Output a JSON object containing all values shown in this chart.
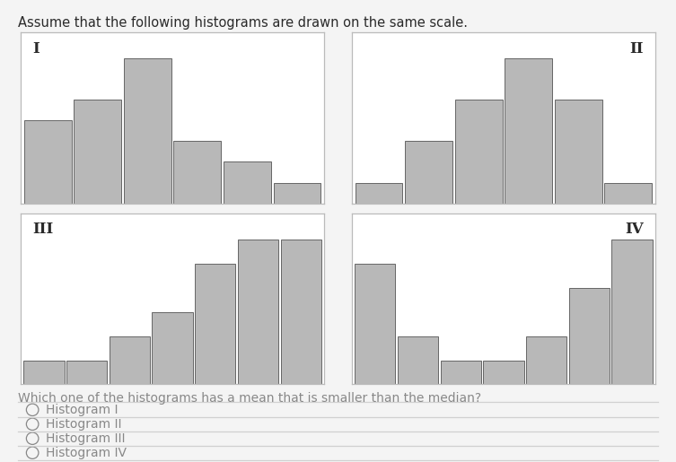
{
  "title": "Assume that the following histograms are drawn on the same scale.",
  "question": "Which one of the histograms has a mean that is smaller than the median?",
  "options": [
    "Histogram I",
    "Histogram II",
    "Histogram III",
    "Histogram IV"
  ],
  "hist_I": [
    4,
    5,
    7,
    3,
    2,
    1
  ],
  "hist_II": [
    1,
    3,
    5,
    7,
    5,
    1
  ],
  "hist_III": [
    1,
    1,
    2,
    3,
    5,
    6,
    6
  ],
  "hist_IV": [
    5,
    2,
    1,
    1,
    2,
    4,
    6
  ],
  "bar_color": "#b8b8b8",
  "bar_edge_color": "#666666",
  "box_edge_color": "#bbbbbb",
  "background_color": "#f4f4f4",
  "panel_bg": "#ffffff",
  "label_color": "#2a2a2a",
  "text_color": "#888888",
  "line_color": "#d0d0d0",
  "title_fontsize": 10.5,
  "question_fontsize": 10.0,
  "option_fontsize": 10.0,
  "label_fontsize": 12
}
